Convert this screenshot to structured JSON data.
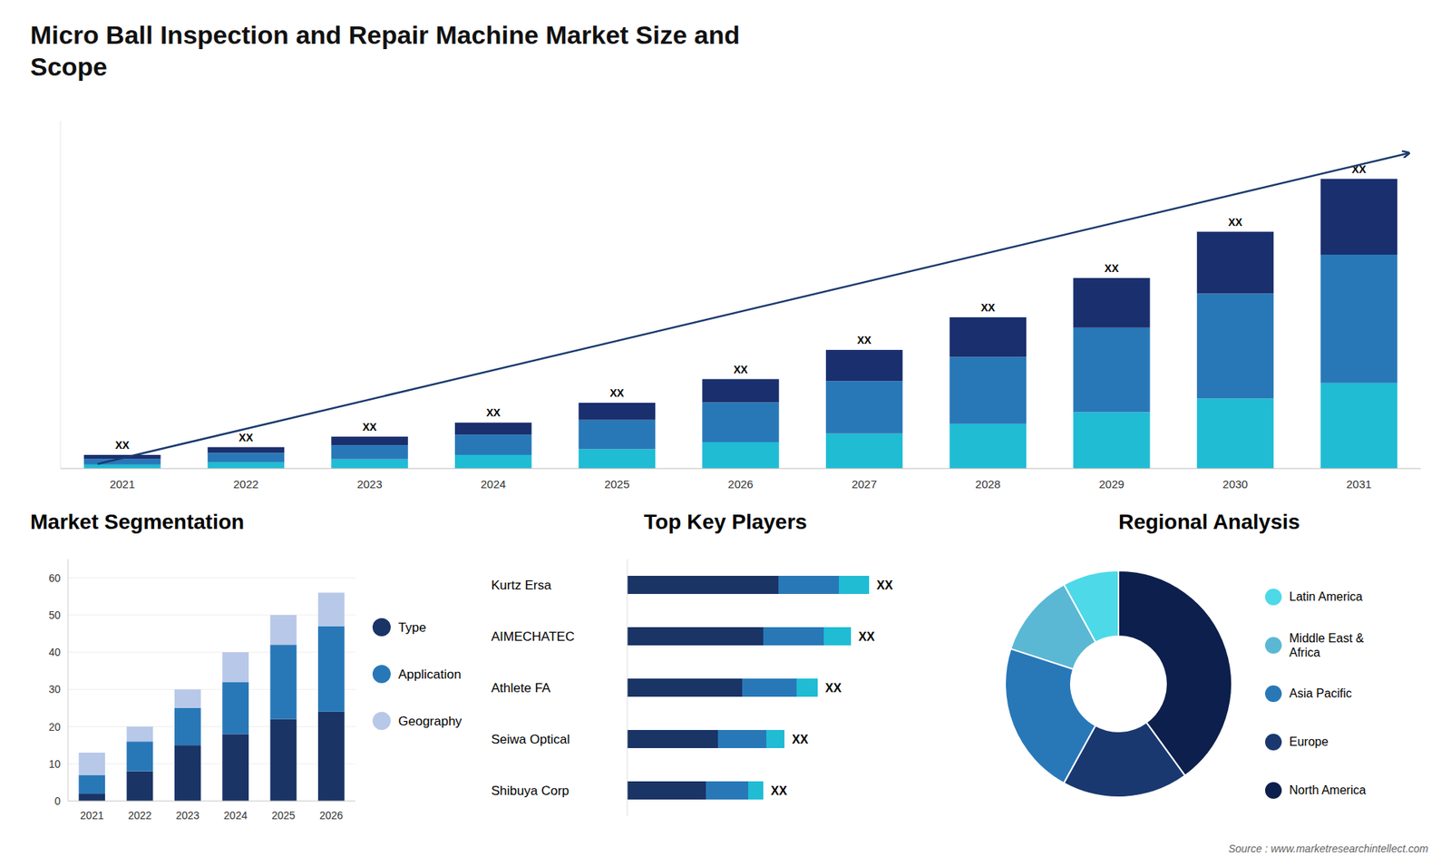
{
  "chart_data": [
    {
      "type": "bar",
      "stacked": true,
      "title": "Micro Ball Inspection and Repair Machine Market Size and\nScope",
      "categories": [
        "2021",
        "2022",
        "2023",
        "2024",
        "2025",
        "2026",
        "2027",
        "2028",
        "2029",
        "2030",
        "2031"
      ],
      "series": [
        {
          "color": "#1fbcd4",
          "values": [
            1.0,
            1.6,
            2.4,
            3.5,
            5.0,
            6.8,
            9.0,
            11.5,
            14.5,
            18.0,
            22.0
          ]
        },
        {
          "color": "#2878b8",
          "values": [
            1.5,
            2.4,
            3.6,
            5.2,
            7.5,
            10.2,
            13.5,
            17.2,
            21.7,
            27.0,
            33.0
          ]
        },
        {
          "color": "#1a2f6e",
          "values": [
            1.0,
            1.5,
            2.2,
            3.1,
            4.4,
            6.0,
            8.0,
            10.2,
            12.8,
            15.9,
            19.5
          ]
        }
      ],
      "annotations": [
        "XX",
        "XX",
        "XX",
        "XX",
        "XX",
        "XX",
        "XX",
        "XX",
        "XX",
        "XX",
        "XX"
      ],
      "ylim": [
        0,
        89.4
      ],
      "tick_labels": "x",
      "grid": false,
      "source": "Source : www.marketresearchintellect.com"
    },
    {
      "type": "bar",
      "stacked": true,
      "title": "Market Segmentation",
      "categories": [
        "2021",
        "2022",
        "2023",
        "2024",
        "2025",
        "2026"
      ],
      "series": [
        {
          "name": "Type",
          "color": "#1a3466",
          "values": [
            2,
            8,
            15,
            18,
            22,
            24
          ]
        },
        {
          "name": "Application",
          "color": "#2878b8",
          "values": [
            5,
            8,
            10,
            14,
            20,
            23
          ]
        },
        {
          "name": "Geography",
          "color": "#b8c8e8",
          "values": [
            6,
            4,
            5,
            8,
            8,
            9
          ]
        }
      ],
      "ylim": [
        0,
        65
      ],
      "yticks": [
        0,
        10,
        20,
        30,
        40,
        50,
        60
      ],
      "grid": true,
      "legend": "right"
    },
    {
      "type": "bar",
      "stacked": true,
      "orientation": "horizontal",
      "title": "Top Key Players",
      "categories": [
        "Kurtz Ersa",
        "AIMECHATEC",
        "Athlete FA",
        "Seiwa Optical",
        "Shibuya Corp"
      ],
      "series": [
        {
          "color": "#1a3466",
          "values": [
            0.5,
            0.45,
            0.38,
            0.3,
            0.26
          ]
        },
        {
          "color": "#2878b8",
          "values": [
            0.2,
            0.2,
            0.18,
            0.16,
            0.14
          ]
        },
        {
          "color": "#1fbcd4",
          "values": [
            0.1,
            0.09,
            0.07,
            0.06,
            0.05
          ]
        }
      ],
      "annotations": [
        "XX",
        "XX",
        "XX",
        "XX",
        "XX"
      ],
      "xlim": [
        0,
        1
      ],
      "tick_labels": "y"
    },
    {
      "type": "pie",
      "title": "Regional Analysis",
      "categories": [
        "Latin America",
        "Middle East &\nAfrica",
        "Asia Pacific",
        "Europe",
        "North America"
      ],
      "values": [
        8,
        12,
        22,
        18,
        40
      ],
      "colors": [
        "#4dd9e8",
        "#5ab8d4",
        "#2878b8",
        "#1a3870",
        "#0d1f4c"
      ],
      "legend": "right"
    }
  ]
}
